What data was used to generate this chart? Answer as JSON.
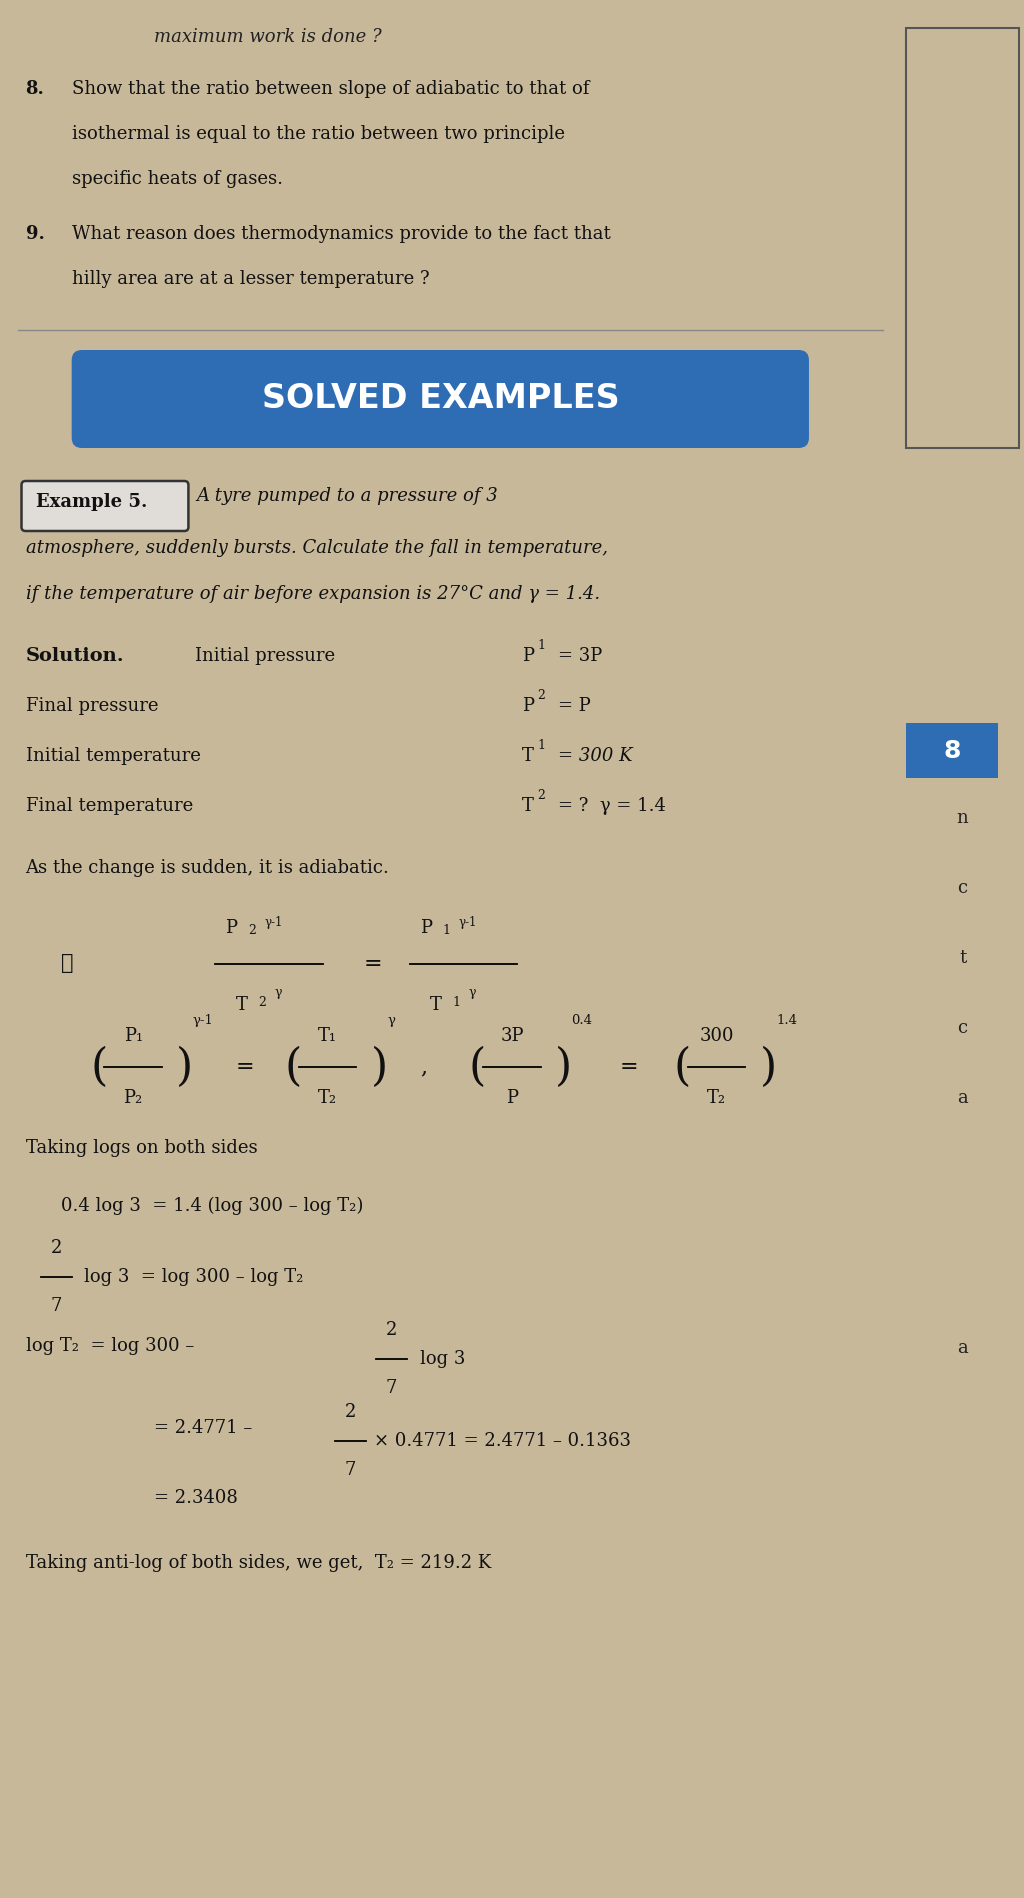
{
  "bg_color": "#c8b89a",
  "page_bg": "#f5f2ec",
  "right_page_bg": "#f0ece4",
  "title_banner_color": "#2e6db4",
  "title_text": "SOLVED EXAMPLES",
  "title_text_color": "#ffffff",
  "sidebar_color": "#2e6db4",
  "right_sidebar_letters": [
    "n",
    "c",
    "t",
    "c",
    "a",
    "a"
  ],
  "top_cut_text": "maximum work is done ?",
  "q8_lines": [
    "Show that the ratio between slope of adiabatic to that of",
    "isothermal is equal to the ratio between two principle",
    "specific heats of gases."
  ],
  "q9_lines": [
    "What reason does thermodynamics provide to the fact that",
    "hilly area are at a lesser temperature ?"
  ],
  "example_label": "Example 5.",
  "example_line1": " A tyre pumped to a pressure of 3",
  "example_line2": "atmosphere, suddenly bursts. Calculate the fall in temperature,",
  "example_line3": "if the temperature of air before expansion is 27°C and γ = 1.4.",
  "main_font_size": 13,
  "title_font_size": 24
}
